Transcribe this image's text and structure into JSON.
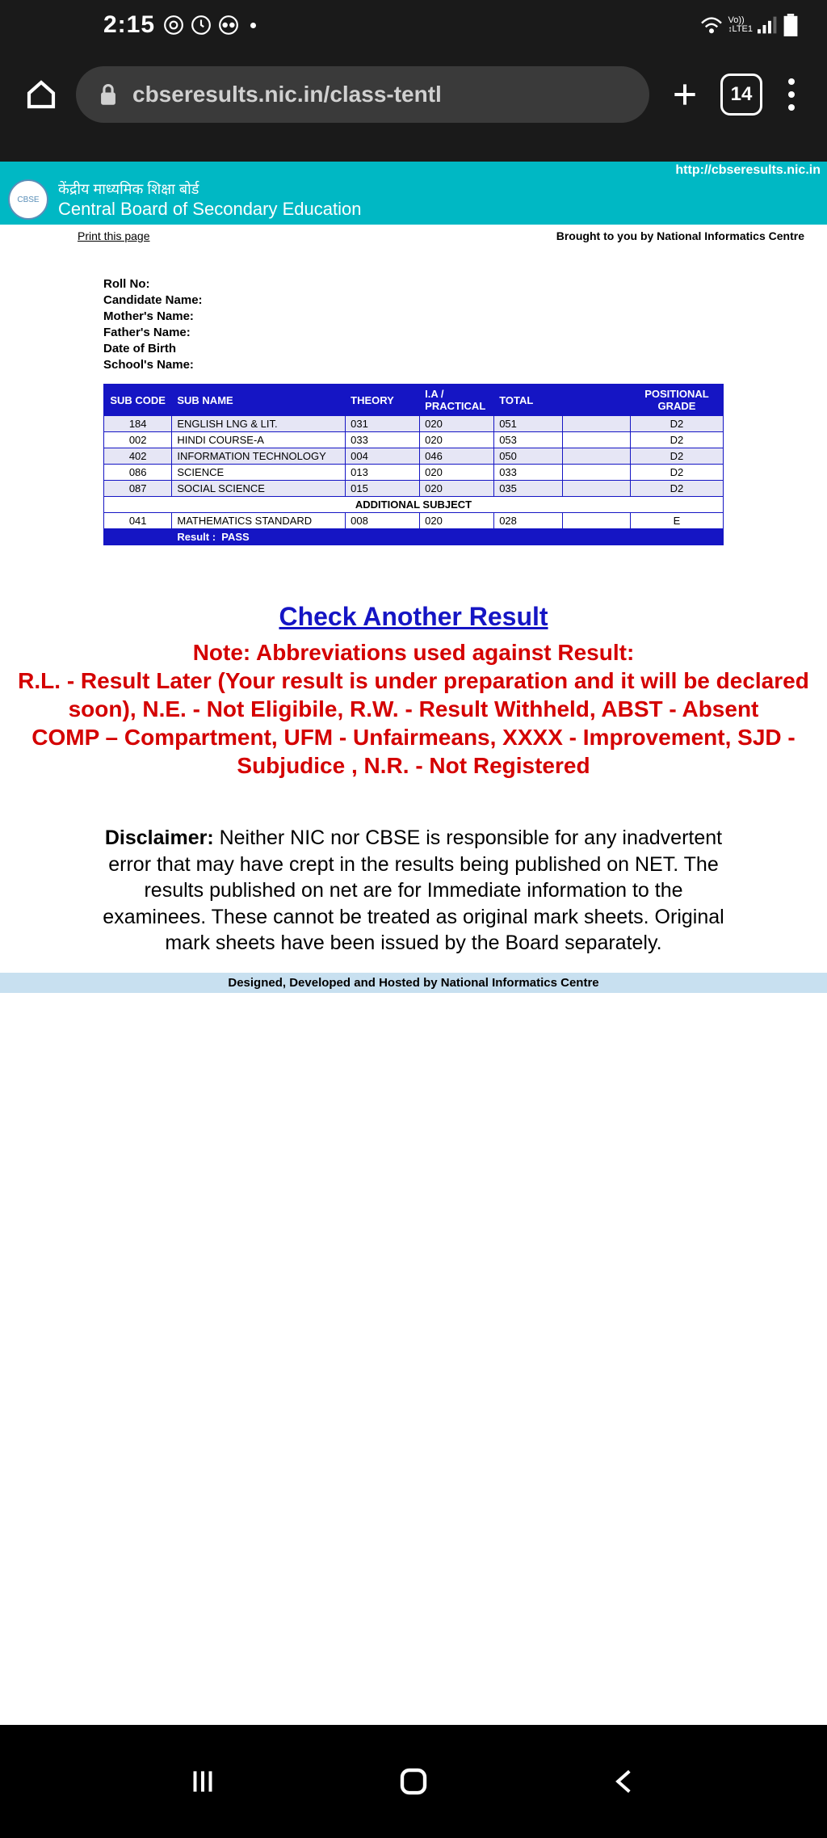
{
  "status": {
    "time": "2:15",
    "lte_label": "Vo))",
    "lte_sub": "LTE1"
  },
  "browser": {
    "url": "cbseresults.nic.in/class-tentl",
    "tab_count": "14"
  },
  "page": {
    "site_url": "http://cbseresults.nic.in",
    "board_hindi": "केंद्रीय माध्यमिक शिक्षा बोर्ड",
    "board_eng": "Central Board of Secondary Education",
    "print_link": "Print this page",
    "brought_by": "Brought to you by National Informatics Centre",
    "labels": {
      "roll": "Roll No:",
      "candidate": "Candidate Name:",
      "mother": "Mother's Name:",
      "father": "Father's Name:",
      "dob": "Date of Birth",
      "school": "School's Name:"
    },
    "table": {
      "headers": {
        "sub_code": "SUB CODE",
        "sub_name": "SUB NAME",
        "theory": "THEORY",
        "practical": "I.A / PRACTICAL",
        "total": "TOTAL",
        "grade": "POSITIONAL GRADE"
      },
      "rows": [
        {
          "code": "184",
          "name": "ENGLISH LNG & LIT.",
          "theory": "031",
          "prac": "020",
          "total": "051",
          "grade": "D2"
        },
        {
          "code": "002",
          "name": "HINDI COURSE-A",
          "theory": "033",
          "prac": "020",
          "total": "053",
          "grade": "D2"
        },
        {
          "code": "402",
          "name": "INFORMATION TECHNOLOGY",
          "theory": "004",
          "prac": "046",
          "total": "050",
          "grade": "D2"
        },
        {
          "code": "086",
          "name": "SCIENCE",
          "theory": "013",
          "prac": "020",
          "total": "033",
          "grade": "D2"
        },
        {
          "code": "087",
          "name": "SOCIAL SCIENCE",
          "theory": "015",
          "prac": "020",
          "total": "035",
          "grade": "D2"
        }
      ],
      "additional_label": "ADDITIONAL SUBJECT",
      "additional": {
        "code": "041",
        "name": "MATHEMATICS STANDARD",
        "theory": "008",
        "prac": "020",
        "total": "028",
        "grade": "E"
      },
      "result_label": "Result :",
      "result_value": "PASS"
    },
    "check_another": "Check Another Result",
    "note_line1": "Note: Abbreviations used against Result:",
    "note_line2": "R.L. - Result Later (Your result is under preparation and it will be declared soon), N.E. - Not Eligibile, R.W. - Result Withheld, ABST - Absent",
    "note_line3": "COMP – Compartment, UFM - Unfairmeans, XXXX - Improvement, SJD - Subjudice , N.R. - Not Registered",
    "disclaimer_label": "Disclaimer:",
    "disclaimer_body": " Neither NIC nor CBSE is responsible for any inadvertent error that may have crept in the results being published on NET. The results published on net are for Immediate information to the examinees. These cannot be treated as original mark sheets. Original mark sheets have been issued by the Board separately.",
    "footer_credit": "Designed, Developed and Hosted by National Informatics Centre"
  }
}
